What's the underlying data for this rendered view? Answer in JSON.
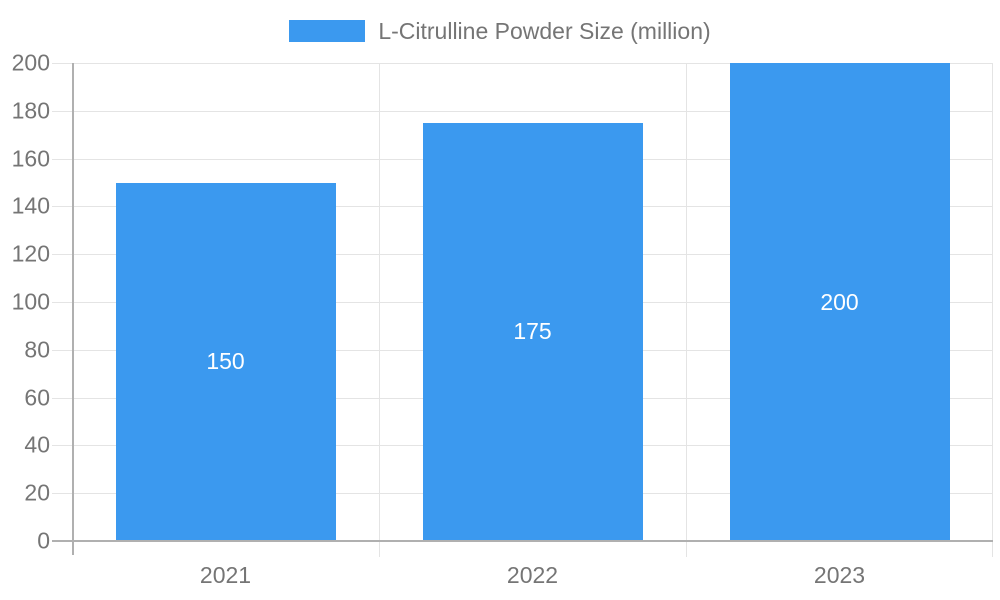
{
  "chart_data": {
    "type": "bar",
    "title": "L-Citrulline Powder Size (million)",
    "legend": {
      "label": "L-Citrulline Powder Size (million)",
      "position": "top-center"
    },
    "categories": [
      "2021",
      "2022",
      "2023"
    ],
    "values": [
      150,
      175,
      200
    ],
    "value_labels": [
      "150",
      "175",
      "200"
    ],
    "value_label_color": "#ffffff",
    "xlabel": "",
    "ylabel": "",
    "ylim": [
      0,
      200
    ],
    "ytick_step": 20,
    "ytick_labels": [
      "0",
      "20",
      "40",
      "60",
      "80",
      "100",
      "120",
      "140",
      "160",
      "180",
      "200"
    ],
    "grid": "horizontal-and-category-boundaries",
    "colors": {
      "series": "#3b99ef",
      "gridline": "#e4e4e4",
      "axis_line": "#b0b0b0",
      "tick_text": "#757575",
      "legend_text": "#757575",
      "background": "#ffffff"
    }
  }
}
